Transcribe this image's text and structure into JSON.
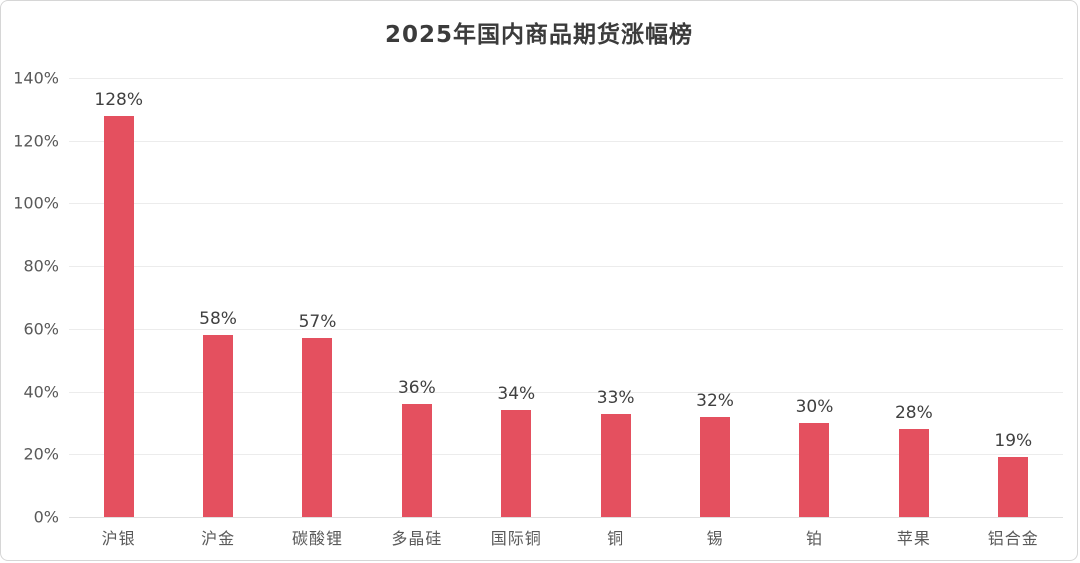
{
  "chart_data": {
    "type": "bar",
    "title": "2025年国内商品期货涨幅榜",
    "categories": [
      "沪银",
      "沪金",
      "碳酸锂",
      "多晶硅",
      "国际铜",
      "铜",
      "锡",
      "铂",
      "苹果",
      "铝合金"
    ],
    "values": [
      128,
      58,
      57,
      36,
      34,
      33,
      32,
      30,
      28,
      19
    ],
    "data_labels": [
      "128%",
      "58%",
      "57%",
      "36%",
      "34%",
      "33%",
      "32%",
      "30%",
      "28%",
      "19%"
    ],
    "xlabel": "",
    "ylabel": "",
    "ylim": [
      0,
      140
    ],
    "ytick_step": 20,
    "ytick_labels": [
      "0%",
      "20%",
      "40%",
      "60%",
      "80%",
      "100%",
      "120%",
      "140%"
    ],
    "grid": true,
    "legend": false,
    "colors": {
      "bar": "#e4505f",
      "gridline": "#ececec",
      "baseline": "#e0e0e0",
      "title_text": "#3b3b3b",
      "data_label_text": "#404040",
      "axis_tick_text": "#595959",
      "card_border": "#d6d6d6",
      "background": "#ffffff"
    }
  }
}
